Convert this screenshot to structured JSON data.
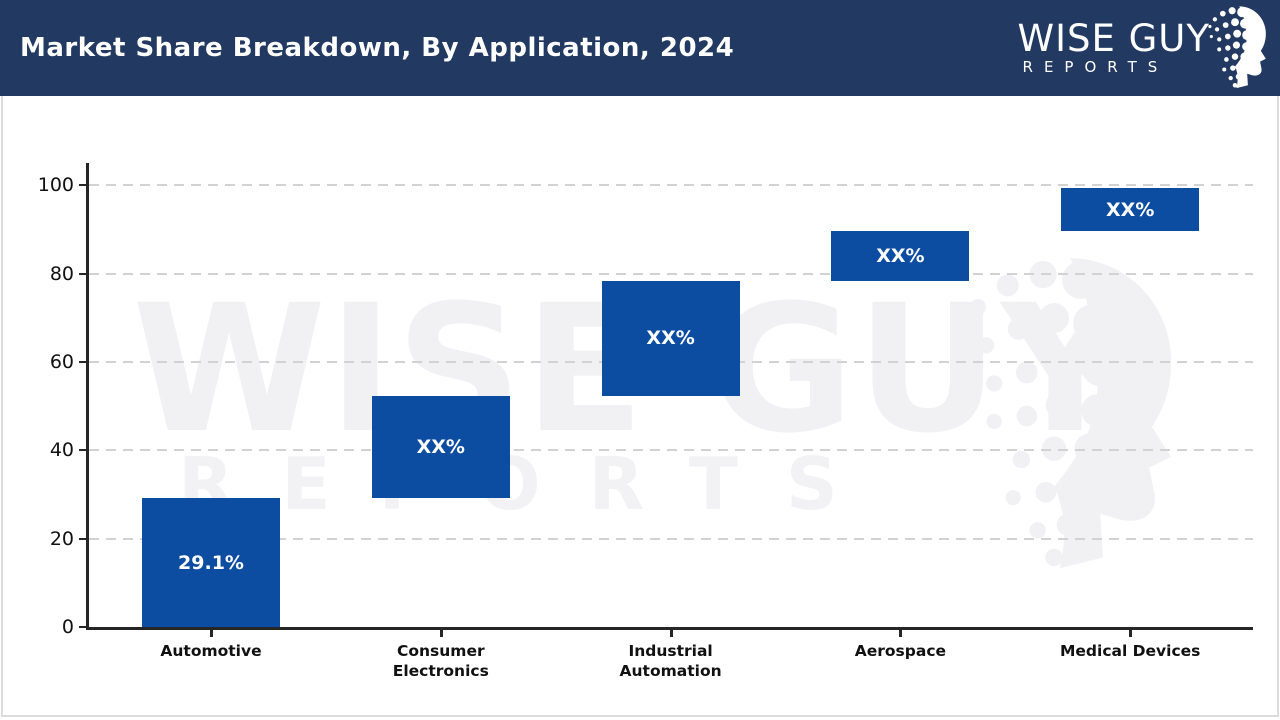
{
  "header": {
    "title": "Market Share Breakdown, By Application, 2024",
    "background_color": "#223962",
    "logo": {
      "line1": "WISE GUY",
      "line2": "REPORTS"
    }
  },
  "watermark": {
    "line1": "WISE GUY",
    "line2": "REPORTS"
  },
  "chart_data": {
    "type": "bar",
    "subtype": "waterfall",
    "title": "Market Share Breakdown, By Application, 2024",
    "value_unit": "percent",
    "categories": [
      "Automotive",
      "Consumer Electronics",
      "Industrial Automation",
      "Aerospace",
      "Medical Devices"
    ],
    "segments": [
      {
        "category": "Automotive",
        "start": 0,
        "end": 29.1,
        "label": "29.1%"
      },
      {
        "category": "Consumer Electronics",
        "start": 29.1,
        "end": 52.4,
        "label": "XX%"
      },
      {
        "category": "Industrial Automation",
        "start": 52.4,
        "end": 78.4,
        "label": "XX%"
      },
      {
        "category": "Aerospace",
        "start": 78.4,
        "end": 89.6,
        "label": "XX%"
      },
      {
        "category": "Medical Devices",
        "start": 89.6,
        "end": 99.4,
        "label": "XX%"
      }
    ],
    "yticks": [
      0,
      20,
      40,
      60,
      80,
      100
    ],
    "ylim": [
      0,
      105
    ],
    "grid": "horizontal-dashed",
    "legend": "none",
    "bar_color": "#0c4da2",
    "bar_label_color": "#ffffff",
    "axis_color": "#262626",
    "gridline_color": "#d2d2d2"
  }
}
